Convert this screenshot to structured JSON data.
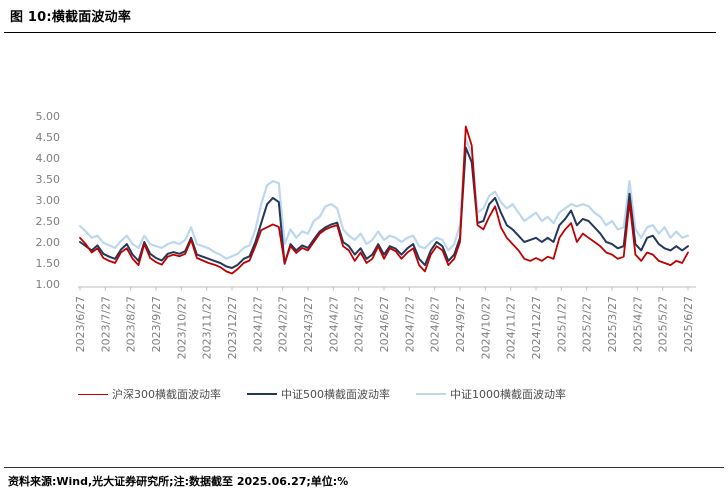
{
  "header": {
    "title": "图 10:横截面波动率"
  },
  "footer": {
    "source": "资料来源:Wind,光大证券研究所;注:数据截至 2025.06.27;单位:%"
  },
  "colors": {
    "axis": "#bfbfbf",
    "tick_label": "#7f7f7f",
    "rule": "#000000"
  },
  "chart_data": {
    "type": "line",
    "title": "",
    "xlabel": "",
    "ylabel": "",
    "unit": "%",
    "grid": false,
    "legend_position": "bottom",
    "ylim": [
      1.0,
      5.0
    ],
    "ytick_labels": [
      "5.00",
      "4.50",
      "4.00",
      "3.50",
      "3.00",
      "2.50",
      "2.00",
      "1.50",
      "1.00"
    ],
    "ytick_values": [
      5.0,
      4.5,
      4.0,
      3.5,
      3.0,
      2.5,
      2.0,
      1.5,
      1.0
    ],
    "xtick_labels": [
      "2023/6/27",
      "2023/7/27",
      "2023/8/27",
      "2023/9/27",
      "2023/10/27",
      "2023/11/27",
      "2023/12/27",
      "2024/1/27",
      "2024/2/27",
      "2024/3/27",
      "2024/4/27",
      "2024/5/27",
      "2024/6/27",
      "2024/7/27",
      "2024/8/27",
      "2024/9/27",
      "2024/10/27",
      "2024/11/27",
      "2024/12/27",
      "2025/1/27",
      "2025/2/27",
      "2025/3/27",
      "2025/4/27",
      "2025/5/27",
      "2025/6/27"
    ],
    "x_label_rotation": 90,
    "sampling_note": "values sampled ~weekly from 2023/6/27 to 2025/6/27",
    "series": [
      {
        "name": "沪深300横截面波动率",
        "color": "#C00000",
        "stroke_width": 1.8,
        "values": [
          2.1,
          1.95,
          1.75,
          1.85,
          1.62,
          1.55,
          1.5,
          1.75,
          1.85,
          1.6,
          1.45,
          1.95,
          1.62,
          1.52,
          1.46,
          1.65,
          1.7,
          1.66,
          1.72,
          2.05,
          1.62,
          1.56,
          1.5,
          1.46,
          1.4,
          1.3,
          1.25,
          1.36,
          1.5,
          1.56,
          1.9,
          2.28,
          2.35,
          2.42,
          2.36,
          1.5,
          1.9,
          1.74,
          1.86,
          1.8,
          2.0,
          2.2,
          2.3,
          2.36,
          2.4,
          1.9,
          1.8,
          1.55,
          1.75,
          1.5,
          1.6,
          1.9,
          1.6,
          1.85,
          1.78,
          1.6,
          1.75,
          1.85,
          1.45,
          1.3,
          1.7,
          1.9,
          1.8,
          1.45,
          1.6,
          2.0,
          4.75,
          4.3,
          2.4,
          2.3,
          2.6,
          2.85,
          2.35,
          2.1,
          1.95,
          1.8,
          1.6,
          1.55,
          1.62,
          1.55,
          1.65,
          1.6,
          2.1,
          2.3,
          2.45,
          2.0,
          2.2,
          2.1,
          2.0,
          1.9,
          1.75,
          1.7,
          1.6,
          1.65,
          2.95,
          1.7,
          1.55,
          1.75,
          1.7,
          1.55,
          1.5,
          1.45,
          1.55,
          1.5,
          1.75
        ]
      },
      {
        "name": "中证500横截面波动率",
        "color": "#24385C",
        "stroke_width": 2.0,
        "values": [
          2.0,
          1.9,
          1.8,
          1.92,
          1.72,
          1.65,
          1.6,
          1.82,
          1.95,
          1.7,
          1.55,
          2.0,
          1.72,
          1.62,
          1.56,
          1.72,
          1.76,
          1.72,
          1.78,
          2.1,
          1.7,
          1.65,
          1.6,
          1.55,
          1.5,
          1.42,
          1.38,
          1.46,
          1.6,
          1.66,
          2.0,
          2.45,
          2.9,
          3.05,
          2.95,
          1.48,
          1.95,
          1.8,
          1.92,
          1.86,
          2.06,
          2.25,
          2.35,
          2.42,
          2.46,
          2.0,
          1.9,
          1.7,
          1.85,
          1.6,
          1.7,
          1.95,
          1.7,
          1.9,
          1.84,
          1.7,
          1.85,
          1.95,
          1.6,
          1.45,
          1.8,
          2.0,
          1.9,
          1.55,
          1.7,
          2.1,
          4.25,
          3.9,
          2.45,
          2.5,
          2.9,
          3.05,
          2.7,
          2.4,
          2.3,
          2.15,
          2.0,
          2.05,
          2.1,
          2.0,
          2.1,
          2.0,
          2.4,
          2.55,
          2.75,
          2.4,
          2.55,
          2.5,
          2.35,
          2.2,
          2.0,
          1.95,
          1.85,
          1.9,
          3.15,
          1.95,
          1.8,
          2.1,
          2.15,
          1.95,
          1.85,
          1.8,
          1.9,
          1.8,
          1.9
        ]
      },
      {
        "name": "中证1000横截面波动率",
        "color": "#BDD7EE",
        "stroke_width": 2.2,
        "values": [
          2.38,
          2.25,
          2.1,
          2.15,
          1.98,
          1.92,
          1.86,
          2.02,
          2.15,
          1.95,
          1.86,
          2.15,
          1.95,
          1.9,
          1.86,
          1.95,
          2.0,
          1.95,
          2.05,
          2.35,
          1.95,
          1.9,
          1.85,
          1.76,
          1.7,
          1.6,
          1.66,
          1.72,
          1.86,
          1.92,
          2.3,
          2.9,
          3.35,
          3.45,
          3.4,
          1.95,
          2.3,
          2.1,
          2.25,
          2.2,
          2.5,
          2.6,
          2.85,
          2.9,
          2.8,
          2.3,
          2.15,
          2.05,
          2.2,
          1.95,
          2.05,
          2.25,
          2.05,
          2.15,
          2.1,
          2.0,
          2.1,
          2.15,
          1.9,
          1.85,
          2.0,
          2.1,
          2.05,
          1.8,
          1.95,
          2.4,
          4.45,
          4.1,
          2.7,
          2.8,
          3.1,
          3.2,
          2.95,
          2.8,
          2.9,
          2.7,
          2.5,
          2.6,
          2.7,
          2.5,
          2.6,
          2.45,
          2.7,
          2.8,
          2.9,
          2.85,
          2.9,
          2.85,
          2.7,
          2.6,
          2.4,
          2.5,
          2.3,
          2.35,
          3.45,
          2.3,
          2.1,
          2.35,
          2.4,
          2.2,
          2.35,
          2.1,
          2.25,
          2.1,
          2.15
        ]
      }
    ]
  }
}
